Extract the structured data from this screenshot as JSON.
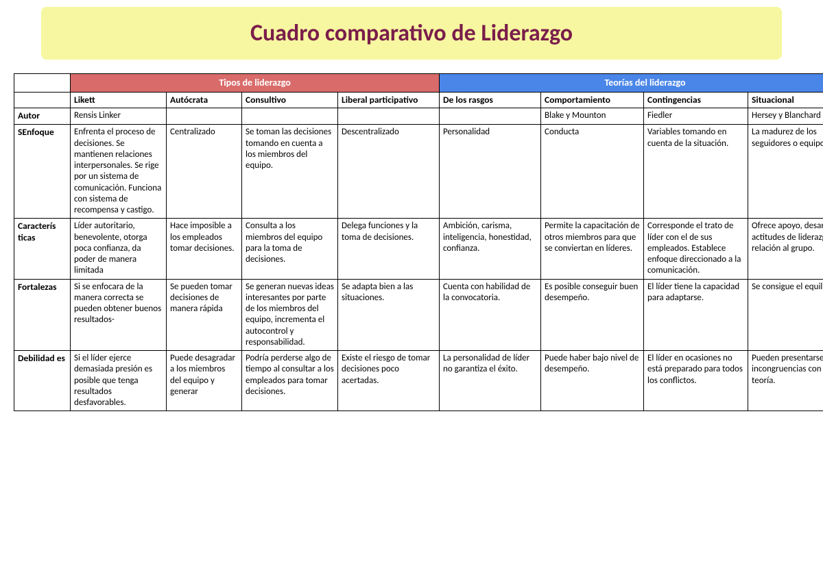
{
  "title": {
    "text": "Cuadro comparativo de Liderazgo",
    "bg_color": "#f7f7a1",
    "text_color": "#7a1e4a",
    "fontsize": 34
  },
  "table": {
    "group_headers": {
      "tipos": {
        "label": "Tipos de liderazgo",
        "bg_color": "#d96b6b",
        "span": 4
      },
      "teorias": {
        "label": "Teorías del liderazgo",
        "bg_color": "#4a86e8",
        "span": 4
      }
    },
    "columns": [
      "Likett",
      "Autócrata",
      "Consultivo",
      "Liberal participativo",
      "De los rasgos",
      "Comportamiento",
      "Contingencias",
      "Situacional"
    ],
    "row_labels": [
      "Autor",
      "SEnfoque",
      "Caracterís ticas",
      "Fortalezas",
      "Debilidad es"
    ],
    "rows": [
      [
        "Rensis Linker",
        "",
        "",
        "",
        "",
        "Blake y Mounton",
        "Fiedler",
        "Hersey y Blanchard"
      ],
      [
        "Enfrenta el proceso de decisiones. Se mantienen relaciones interpersonales. Se rige por un sistema de comunicación. Funciona con sistema de recompensa y castigo.",
        "Centralizado",
        "Se toman las decisiones tomando en cuenta a los miembros del equipo.",
        "Descentralizado",
        "Personalidad",
        "Conducta",
        "Variables tomando en cuenta de la situación.",
        "La madurez de los seguidores o equipo."
      ],
      [
        "Líder autoritario, benevolente, otorga poca confianza, da poder de manera limitada",
        "Hace imposible a los empleados tomar decisiones.",
        "Consulta a los miembros del equipo para la toma de decisiones.",
        "Delega funciones y la toma de decisiones.",
        "Ambición, carisma, inteligencia, honestidad, confianza.",
        "Permite la capacitación de otros miembros para que se conviertan en líderes.",
        "Corresponde el trato de líder con el de sus empleados. Establece enfoque direccionado a la comunicación.",
        "Ofrece apoyo, desarrolla actitudes de liderazgo en relación al grupo."
      ],
      [
        "Si se enfocara de la manera correcta se pueden obtener buenos resultados-",
        "Se pueden tomar decisiones de manera rápida",
        "Se generan nuevas ideas interesantes por parte de los miembros del equipo, incrementa el autocontrol y responsabilidad.",
        "Se adapta bien a las situaciones.",
        "Cuenta con habilidad de la convocatoria.",
        "Es posible conseguir buen desempeño.",
        "El líder tiene la capacidad para adaptarse.",
        "Se consigue el equilibrio."
      ],
      [
        "Si el líder ejerce demasiada presión es posible que tenga resultados desfavorables.",
        "Puede desagradar a los miembros del equipo y generar",
        "Podría perderse algo de tiempo al consultar a los empleados para tomar decisiones.",
        "Existe el riesgo de tomar decisiones poco acertadas.",
        "La personalidad de líder no garantiza el éxito.",
        "Puede haber bajo nivel de desempeño.",
        "El líder en ocasiones no está preparado para todos los conflictos.",
        "Pueden presentarse incongruencias con la teoría."
      ]
    ],
    "border_color": "#000000",
    "cell_fontsize": 13
  }
}
